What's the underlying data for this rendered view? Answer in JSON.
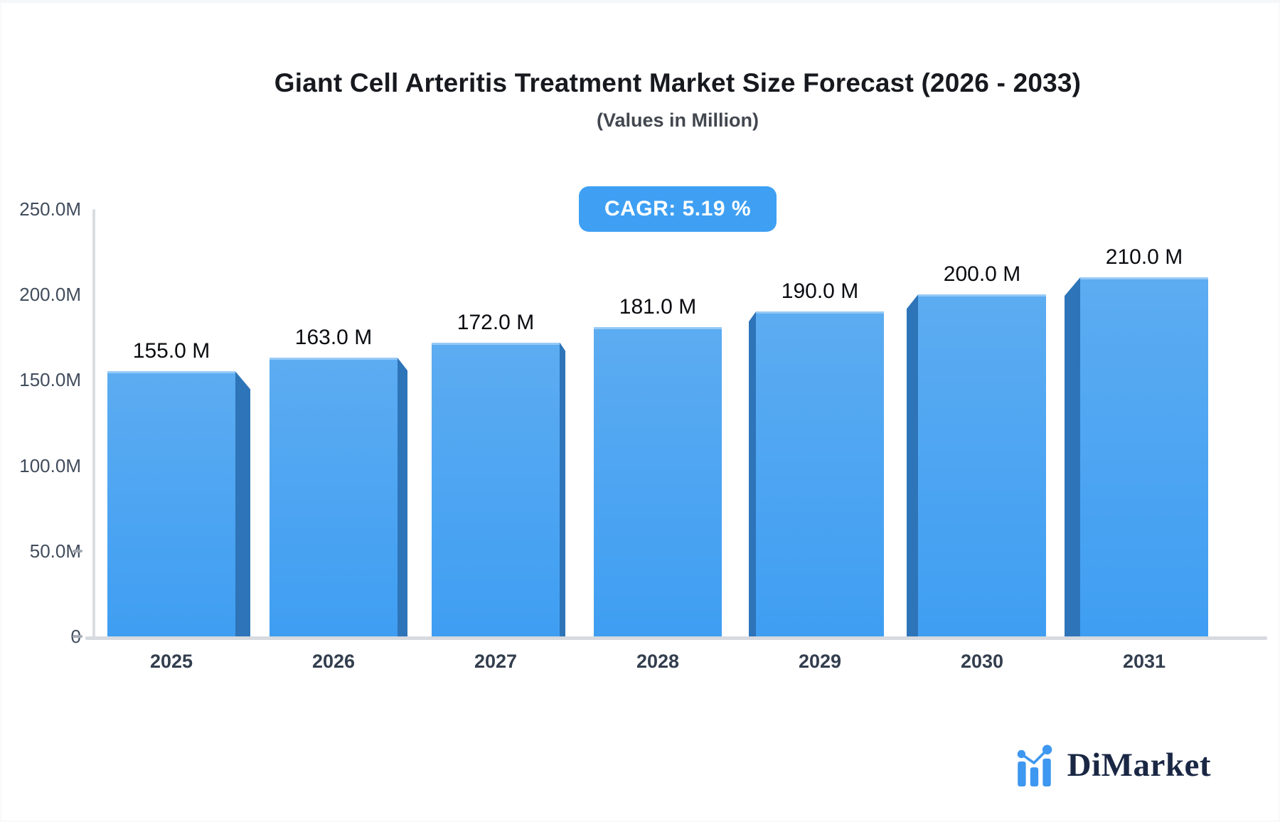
{
  "header": {
    "title": "Giant Cell Arteritis Treatment Market Size Forecast (2026 - 2033)",
    "subtitle": "(Values in Million)",
    "cagr_label": "CAGR: 5.19 %"
  },
  "chart_data": {
    "type": "bar",
    "title": "Giant Cell Arteritis Treatment Market Size Forecast (2026 - 2033)",
    "subtitle": "(Values in Million)",
    "categories": [
      "2025",
      "2026",
      "2027",
      "2028",
      "2029",
      "2030",
      "2031"
    ],
    "values": [
      155,
      163,
      172,
      181,
      190,
      200,
      210
    ],
    "value_labels": [
      "155.0 M",
      "163.0 M",
      "172.0 M",
      "181.0 M",
      "190.0 M",
      "200.0 M",
      "210.0 M"
    ],
    "ylim": [
      0,
      250
    ],
    "y_ticks": [
      {
        "value": 250,
        "label": "250.0M",
        "dash": false
      },
      {
        "value": 200,
        "label": "200.0M",
        "dash": false
      },
      {
        "value": 150,
        "label": "150.0M",
        "dash": false
      },
      {
        "value": 100,
        "label": "100.0M",
        "dash": false
      },
      {
        "value": 50,
        "label": "50.0M",
        "dash": true
      },
      {
        "value": 0,
        "label": "0",
        "dash": true
      }
    ],
    "grid": false,
    "legend": false,
    "style_3d_side_widths": [
      21,
      14,
      8,
      0,
      10,
      16,
      22
    ]
  },
  "colors": {
    "badge_bg": "#3fa0f3",
    "bar_top": "#5cacf1",
    "bar_bottom": "#3f9ef2",
    "bar_side": "#2e74b8",
    "axis_line": "#dadde1",
    "baseline": "#d7dadf",
    "logo_blue": "#3e97f0",
    "logo_navy": "#1a2744"
  },
  "footer": {
    "logo_text": "DiMarket"
  }
}
